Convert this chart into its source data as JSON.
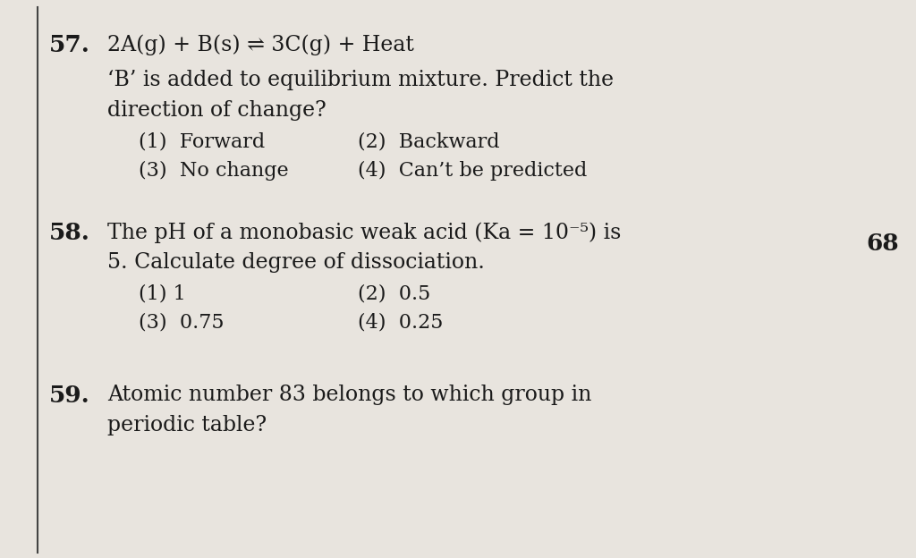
{
  "background_color": "#e8e4de",
  "text_color": "#1a1a1a",
  "left_line_color": "#444444",
  "q57_number": "57.",
  "q57_equation": "2A(g) + B(s) ⇌ 3C(g) + Heat",
  "q57_line2": "‘B’ is added to equilibrium mixture. Predict the",
  "q57_line3": "direction of change?",
  "q57_opt1": "(1)  Forward",
  "q57_opt2": "(2)  Backward",
  "q57_opt3": "(3)  No change",
  "q57_opt4": "(4)  Can’t be predicted",
  "q58_number": "58.",
  "q58_line1": "The pH of a monobasic weak acid (Ka = 10⁻⁵) is",
  "q58_line2": "5. Calculate degree of dissociation.",
  "q58_opt1": "(1) 1",
  "q58_opt2": "(2)  0.5",
  "q58_opt3": "(3)  0.75",
  "q58_opt4": "(4)  0.25",
  "q58_side": "68",
  "q59_number": "59.",
  "q59_line1": "Atomic number 83 belongs to which group in",
  "q59_line2": "periodic table?",
  "font_size_number": 19,
  "font_size_text": 17,
  "font_size_option": 16,
  "font_size_side": 19,
  "font_family": "DejaVu Serif"
}
